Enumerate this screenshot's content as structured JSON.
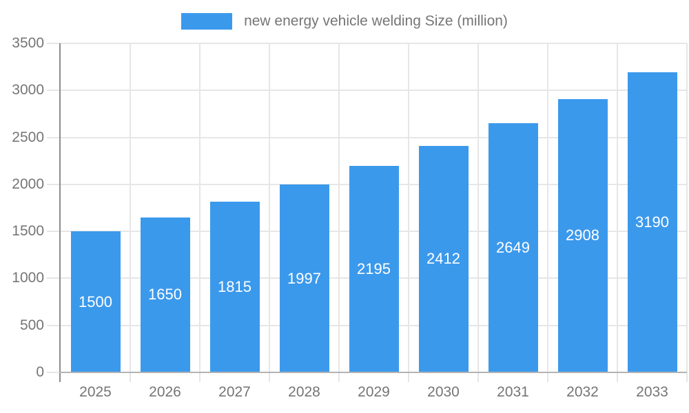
{
  "legend": {
    "label": "new energy vehicle welding Size (million)"
  },
  "chart_data": {
    "type": "bar",
    "title": "",
    "categories": [
      "2025",
      "2026",
      "2027",
      "2028",
      "2029",
      "2030",
      "2031",
      "2032",
      "2033"
    ],
    "series": [
      {
        "name": "new energy vehicle welding Size (million)",
        "values": [
          1500,
          1650,
          1815,
          1997,
          2195,
          2412,
          2649,
          2908,
          3190
        ]
      }
    ],
    "xlabel": "",
    "ylabel": "",
    "ylim": [
      0,
      3500
    ],
    "yticks": [
      0,
      500,
      1000,
      1500,
      2000,
      2500,
      3000,
      3500
    ],
    "grid": true,
    "legend_position": "top-center",
    "value_labels": "inside-center",
    "colors": {
      "bar": "#3b99ec",
      "value_label": "#ffffff",
      "grid": "#e6e6e6",
      "y_axis": "#8c8c8c",
      "x_axis": "#b3b3b3",
      "tick_label": "#757575",
      "legend_text": "#757575",
      "background": "#ffffff"
    }
  }
}
